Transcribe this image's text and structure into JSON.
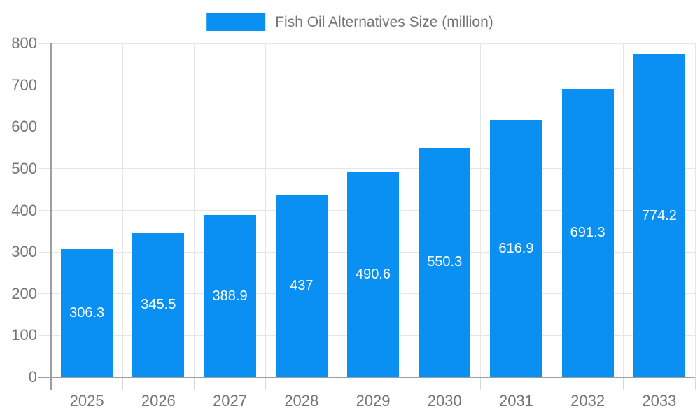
{
  "chart_data": {
    "type": "bar",
    "title": "Fish Oil Alternatives Size (million)",
    "categories": [
      "2025",
      "2026",
      "2027",
      "2028",
      "2029",
      "2030",
      "2031",
      "2032",
      "2033"
    ],
    "values": [
      306.3,
      345.5,
      388.9,
      437,
      490.6,
      550.3,
      616.9,
      691.3,
      774.2
    ],
    "value_labels": [
      "306.3",
      "345.5",
      "388.9",
      "437",
      "490.6",
      "550.3",
      "616.9",
      "691.3",
      "774.2"
    ],
    "xlabel": "",
    "ylabel": "",
    "ylim": [
      0,
      800
    ],
    "ytick_step": 100,
    "grid": "on",
    "legend_position": "top-center",
    "colors": {
      "bar": "#0A8FF2",
      "value_label": "#FFFFFF",
      "axis_text": "#757575",
      "grid_line": "#E6E6E6",
      "axis_line": "#9E9E9E",
      "tick": "#D9D9D9",
      "background": "#FFFFFF"
    }
  }
}
